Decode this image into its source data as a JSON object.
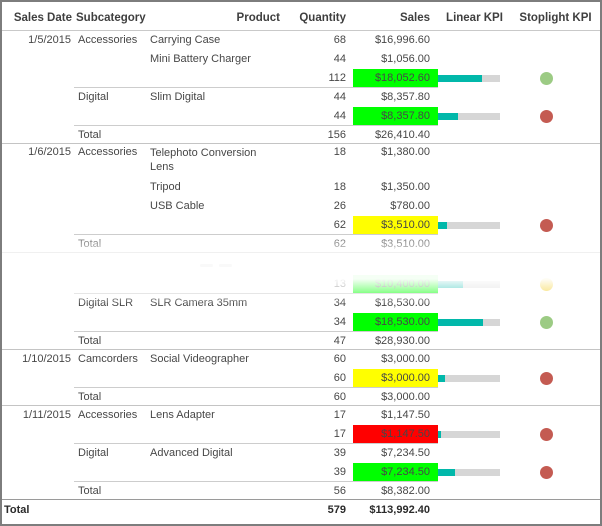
{
  "table": {
    "columns": [
      "Sales Date",
      "Subcategory",
      "Product",
      "Quantity",
      "Sales",
      "Linear KPI",
      "Stoplight KPI"
    ],
    "rows": [
      {
        "type": "detail",
        "date": "1/5/2015",
        "subcategory": "Accessories",
        "product": "Carrying Case",
        "quantity": "68",
        "sales": "$16,996.60"
      },
      {
        "type": "detail",
        "product": "Mini Battery Charger",
        "quantity": "44",
        "sales": "$1,056.00"
      },
      {
        "type": "subtotal",
        "quantity": "112",
        "sales": "$18,052.60",
        "sales_bg": "green",
        "bar_pct": 71,
        "stoplight": "green"
      },
      {
        "type": "detail",
        "subcategory": "Digital",
        "product": "Slim Digital",
        "quantity": "44",
        "sales": "$8,357.80",
        "sep": "sub"
      },
      {
        "type": "subtotal",
        "quantity": "44",
        "sales": "$8,357.80",
        "sales_bg": "green",
        "bar_pct": 33,
        "stoplight": "red"
      },
      {
        "type": "total",
        "subcategory": "Total",
        "quantity": "156",
        "sales": "$26,410.40",
        "sep": "sub"
      },
      {
        "type": "detail",
        "date": "1/6/2015",
        "subcategory": "Accessories",
        "product": "Telephoto Conversion Lens",
        "quantity": "18",
        "sales": "$1,380.00",
        "sep": "group",
        "twoline": true
      },
      {
        "type": "detail",
        "product": "Tripod",
        "quantity": "18",
        "sales": "$1,350.00"
      },
      {
        "type": "detail",
        "product": "USB Cable",
        "quantity": "26",
        "sales": "$780.00"
      },
      {
        "type": "subtotal",
        "quantity": "62",
        "sales": "$3,510.00",
        "sales_bg": "yellow",
        "bar_pct": 15,
        "stoplight": "red"
      },
      {
        "type": "total",
        "subcategory": "Total",
        "quantity": "62",
        "sales": "$3,510.00",
        "sep": "sub"
      },
      {
        "type": "ghost",
        "sep": "group",
        "ghost_marks": true
      },
      {
        "type": "subtotal",
        "quantity": "13",
        "sales": "$10,400.00",
        "sales_bg": "green",
        "bar_pct": 41,
        "stoplight": "yellow"
      },
      {
        "type": "detail",
        "subcategory": "Digital SLR",
        "product": "SLR Camera 35mm",
        "quantity": "34",
        "sales": "$18,530.00",
        "sep": "sub"
      },
      {
        "type": "subtotal",
        "quantity": "34",
        "sales": "$18,530.00",
        "sales_bg": "green",
        "bar_pct": 73,
        "stoplight": "green"
      },
      {
        "type": "total",
        "subcategory": "Total",
        "quantity": "47",
        "sales": "$28,930.00",
        "sep": "sub"
      },
      {
        "type": "detail",
        "date": "1/10/2015",
        "subcategory": "Camcorders",
        "product": "Social Videographer",
        "quantity": "60",
        "sales": "$3,000.00",
        "sep": "group"
      },
      {
        "type": "subtotal",
        "quantity": "60",
        "sales": "$3,000.00",
        "sales_bg": "yellow",
        "bar_pct": 12,
        "stoplight": "red"
      },
      {
        "type": "total",
        "subcategory": "Total",
        "quantity": "60",
        "sales": "$3,000.00",
        "sep": "sub"
      },
      {
        "type": "detail",
        "date": "1/11/2015",
        "subcategory": "Accessories",
        "product": "Lens Adapter",
        "quantity": "17",
        "sales": "$1,147.50",
        "sep": "group"
      },
      {
        "type": "subtotal",
        "quantity": "17",
        "sales": "$1,147.50",
        "sales_bg": "red",
        "bar_pct": 5,
        "stoplight": "red"
      },
      {
        "type": "detail",
        "subcategory": "Digital",
        "product": "Advanced Digital",
        "quantity": "39",
        "sales": "$7,234.50",
        "sep": "sub"
      },
      {
        "type": "subtotal",
        "quantity": "39",
        "sales": "$7,234.50",
        "sales_bg": "green",
        "bar_pct": 28,
        "stoplight": "red"
      },
      {
        "type": "total",
        "subcategory": "Total",
        "quantity": "56",
        "sales": "$8,382.00",
        "sep": "sub"
      }
    ],
    "grand_total": {
      "label": "Total",
      "quantity": "579",
      "sales": "$113,992.40"
    }
  },
  "colors": {
    "kpi_green": "#00FF00",
    "kpi_yellow": "#FFFF00",
    "kpi_red": "#FF0000",
    "bar_fill": "#01B8AA",
    "bar_track": "#D6D6D6",
    "stoplight_green": "#9CCB84",
    "stoplight_red": "#C45B52",
    "stoplight_yellow": "#F2C80F"
  }
}
